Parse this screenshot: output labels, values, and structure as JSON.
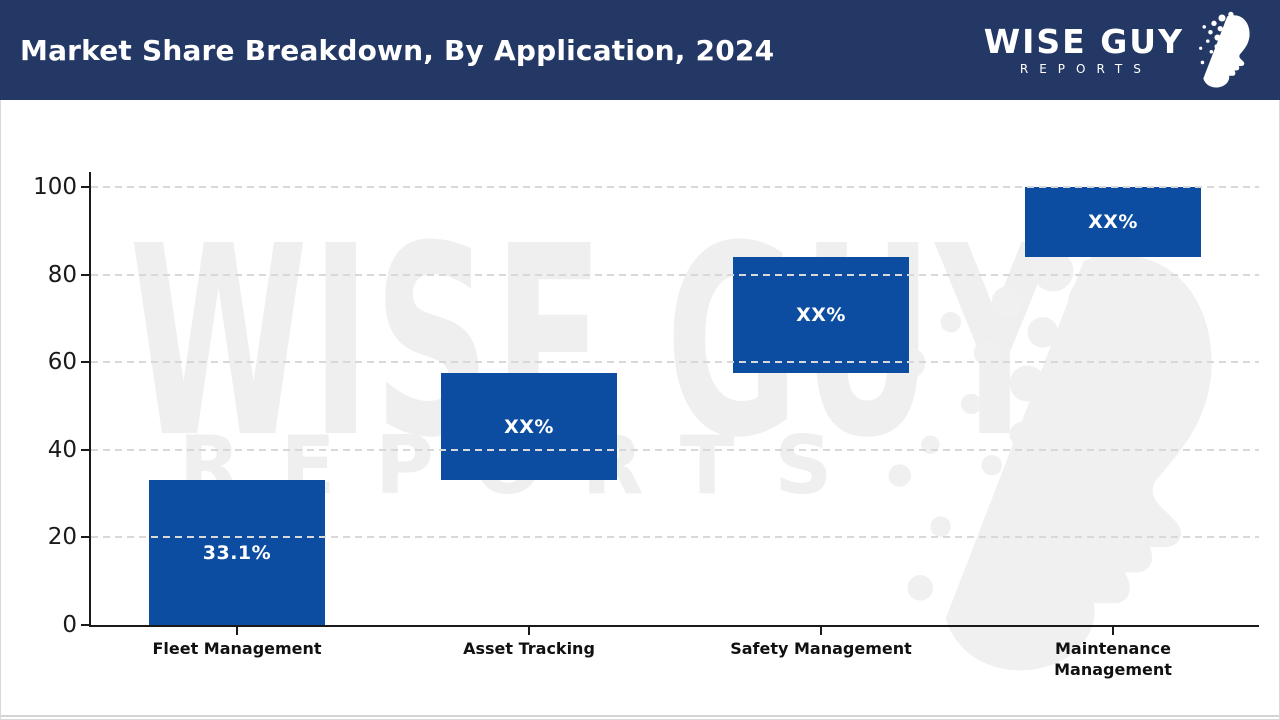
{
  "header": {
    "title": "Market Share Breakdown, By Application, 2024",
    "logo": {
      "line1": "WISE GUY",
      "line2": "REPORTS"
    }
  },
  "watermark": {
    "line1": "WISE GUY",
    "line2": "REPORTS"
  },
  "chart_data": {
    "type": "bar",
    "subtype": "waterfall-floating-bars",
    "title": "Market Share Breakdown, By Application, 2024",
    "categories": [
      "Fleet Management",
      "Asset Tracking",
      "Safety Management",
      "Maintenance Management"
    ],
    "category_lines": [
      [
        "Fleet Management"
      ],
      [
        "Asset Tracking"
      ],
      [
        "Safety Management"
      ],
      [
        "Maintenance",
        "Management"
      ]
    ],
    "segments": [
      {
        "category": "Fleet Management",
        "start": 0,
        "end": 33.1,
        "label": "33.1%"
      },
      {
        "category": "Asset Tracking",
        "start": 33.1,
        "end": 57.6,
        "label": "XX%"
      },
      {
        "category": "Safety Management",
        "start": 57.6,
        "end": 84.0,
        "label": "XX%"
      },
      {
        "category": "Maintenance Management",
        "start": 84.0,
        "end": 100.0,
        "label": "XX%"
      }
    ],
    "yticks": [
      0,
      20,
      40,
      60,
      80,
      100
    ],
    "ylim": [
      0,
      103.5
    ],
    "xlabel": "",
    "ylabel": "",
    "grid": "horizontal-dashed",
    "legend": "none",
    "bar_color": "#0d4da1",
    "bar_label_color": "#ffffff"
  },
  "colors": {
    "header_bg": "#233865",
    "bar": "#0d4da1",
    "grid": "#d8d8d8",
    "axis": "#1a1a1a",
    "watermark": "#efefef",
    "card_border": "#d9d9d9"
  }
}
